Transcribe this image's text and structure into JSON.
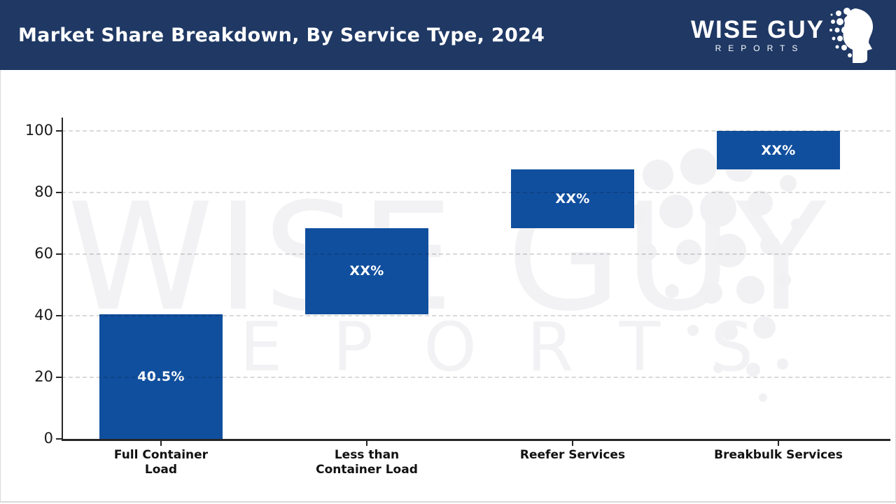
{
  "header": {
    "title": "Market Share Breakdown, By Service Type, 2024",
    "logo": {
      "line1": "WISE GUY",
      "line2": "REPORTS"
    },
    "bg_color": "#1f3864"
  },
  "watermark": {
    "line1": "WISE GUY",
    "line2": "REPORTS"
  },
  "chart_data": {
    "type": "bar",
    "subtype": "waterfall-stacked-segments",
    "title": "Market Share Breakdown, By Service Type, 2024",
    "categories": [
      "Full Container\nLoad",
      "Less than\nContainer Load",
      "Reefer Services",
      "Breakbulk Services"
    ],
    "segments": [
      {
        "category": "Full Container Load",
        "start": 0,
        "end": 40.5,
        "label": "40.5%"
      },
      {
        "category": "Less than Container Load",
        "start": 40.5,
        "end": 68.4,
        "label": "XX%"
      },
      {
        "category": "Reefer Services",
        "start": 68.4,
        "end": 87.5,
        "label": "XX%"
      },
      {
        "category": "Breakbulk Services",
        "start": 87.5,
        "end": 100,
        "label": "XX%"
      }
    ],
    "yticks": [
      0,
      20,
      40,
      60,
      80,
      100
    ],
    "ylim": [
      0,
      100
    ],
    "xlabel": "",
    "ylabel": "",
    "grid": "horizontal-dashed",
    "legend": "none",
    "bar_color": "#104f9e",
    "axis_color": "#262626",
    "grid_color": "#d9d9d9",
    "watermark_color": "#f2f2f4"
  }
}
